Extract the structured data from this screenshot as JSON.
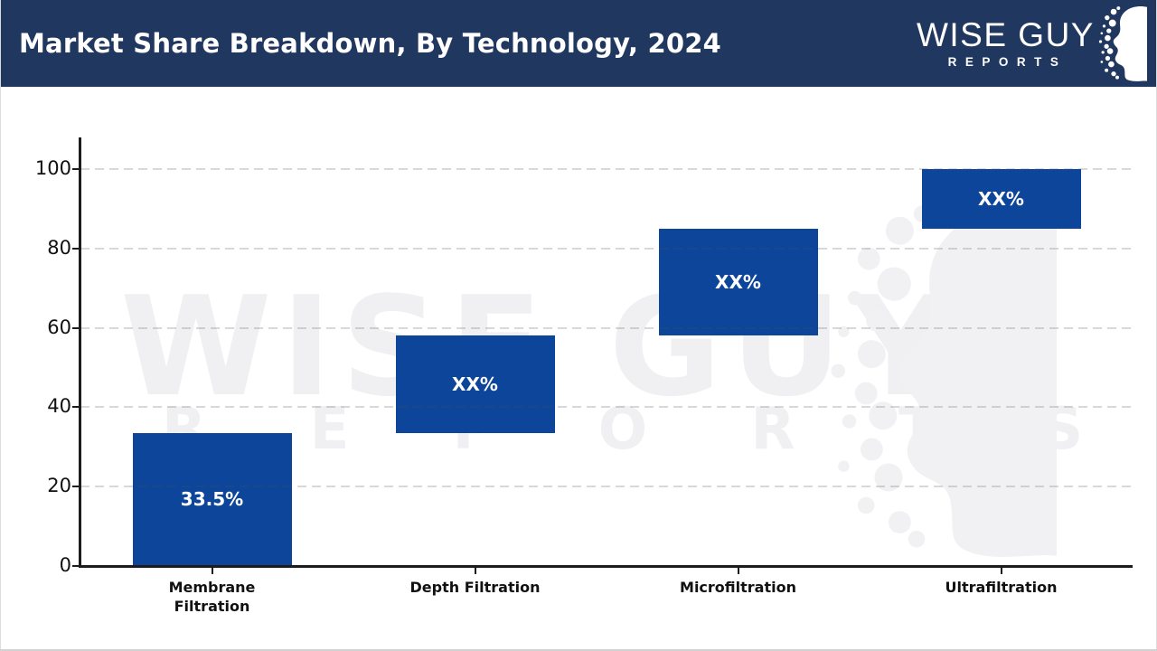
{
  "header": {
    "title": "Market Share Breakdown, By Technology, 2024",
    "brand": {
      "line1": "WISE GUY",
      "line2": "REPORTS"
    }
  },
  "watermark": {
    "line1": "WISE GUY",
    "line2": "R E P O R T S"
  },
  "colors": {
    "header_bg": "#20375f",
    "bar_blue": "#0c4599",
    "axis": "#1c1c1c",
    "bar_label": "#ffffff"
  },
  "chart_data": {
    "type": "bar",
    "subtype": "waterfall",
    "title": "Market Share Breakdown, By Technology, 2024",
    "categories": [
      "Membrane Filtration",
      "Depth Filtration",
      "Microfiltration",
      "Ultrafiltration"
    ],
    "category_label_lines": [
      [
        "Membrane",
        "Filtration"
      ],
      [
        "Depth Filtration"
      ],
      [
        "Microfiltration"
      ],
      [
        "Ultrafiltration"
      ]
    ],
    "segments": [
      {
        "category": "Membrane Filtration",
        "start": 0,
        "end": 33.5,
        "label": "33.5%"
      },
      {
        "category": "Depth Filtration",
        "start": 33.5,
        "end": 58,
        "label": "XX%"
      },
      {
        "category": "Microfiltration",
        "start": 58,
        "end": 85,
        "label": "XX%"
      },
      {
        "category": "Ultrafiltration",
        "start": 85,
        "end": 100,
        "label": "XX%"
      }
    ],
    "xlabel": "",
    "ylabel": "",
    "ylim": [
      0,
      100
    ],
    "yticks": [
      0,
      20,
      40,
      60,
      80,
      100
    ],
    "grid": "horizontal-dashed",
    "legend": "none",
    "bar_color": "#0c4599",
    "value_label_color": "#ffffff"
  }
}
